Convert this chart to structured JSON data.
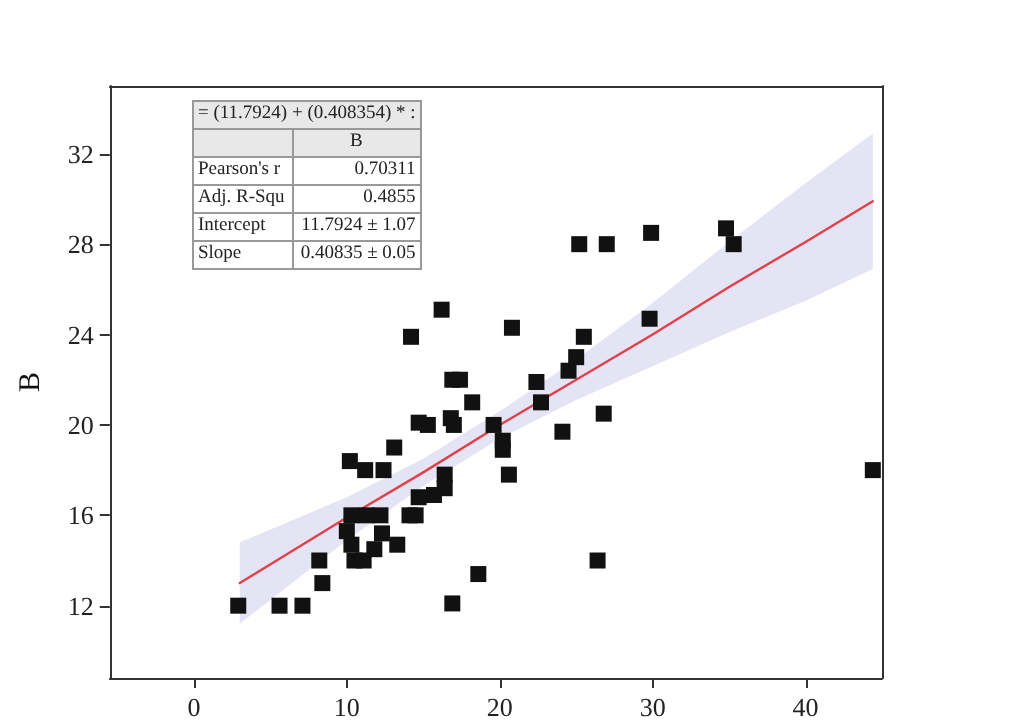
{
  "chart_data": {
    "type": "scatter",
    "ylabel": "B",
    "xlim": [
      -5.5,
      45
    ],
    "ylim": [
      8.8,
      35
    ],
    "xticks": [
      0,
      10,
      20,
      30,
      40
    ],
    "yticks": [
      12,
      16,
      20,
      24,
      28,
      32
    ],
    "grid": false,
    "marker": "square",
    "annotations": [
      "= (11.7924) + (0.408354) * :",
      "B",
      "Pearson's r",
      "0.70311",
      "Adj. R-Squ",
      "0.4855",
      "Intercept",
      "11.7924 ± 1.07",
      "Slope",
      "0.40835 ± 0.05"
    ],
    "series": [
      {
        "color": "#111111",
        "x": [
          2.9,
          5.6,
          7.1,
          8.2,
          8.4,
          10,
          10.3,
          10.3,
          10.5,
          11.1,
          10.2,
          11.2,
          11.3,
          12.2,
          12.4,
          12.3,
          11.8,
          13.1,
          13.3,
          14.1,
          14.5,
          14.7,
          14.2,
          14.7,
          15.3,
          15.7,
          16.2,
          16.4,
          16.4,
          16.8,
          17,
          16.9,
          17.4,
          16.9,
          18.2,
          18.6,
          20.8,
          19.6,
          20.2,
          20.2,
          20.6,
          22.4,
          22.7,
          24.1,
          24.5,
          25,
          25.5,
          25.2,
          27,
          29.9,
          34.8,
          35.3,
          29.8,
          26.8,
          26.4,
          44.4
        ],
        "values": [
          12,
          12,
          12,
          14,
          13,
          15.3,
          16,
          14.7,
          14,
          14,
          18.4,
          18,
          16,
          16,
          18,
          15.2,
          14.5,
          19,
          14.7,
          16,
          16,
          16.8,
          23.9,
          20.1,
          20,
          16.9,
          25.1,
          17.8,
          17.2,
          20.3,
          20,
          22,
          22,
          12.1,
          21,
          13.4,
          24.3,
          20,
          19.3,
          18.9,
          17.8,
          21.9,
          21,
          19.7,
          22.4,
          23,
          23.9,
          28,
          28,
          28.5,
          28.7,
          28,
          24.7,
          20.5,
          14,
          18
        ]
      },
      {
        "type": "line",
        "color": "#e0404a",
        "line_style": "solid",
        "marker": "none",
        "x": [
          3,
          10,
          15,
          20,
          25,
          30,
          35,
          40,
          44.4
        ],
        "values": [
          13.0,
          15.9,
          17.9,
          20.0,
          22.0,
          24.0,
          26.1,
          28.1,
          29.9
        ],
        "lower": [
          11.2,
          14.9,
          17.3,
          19.4,
          21.1,
          22.6,
          24.1,
          25.5,
          26.9
        ],
        "upper": [
          14.8,
          16.8,
          18.5,
          20.6,
          22.9,
          25.4,
          28.1,
          30.7,
          32.9
        ]
      }
    ]
  }
}
